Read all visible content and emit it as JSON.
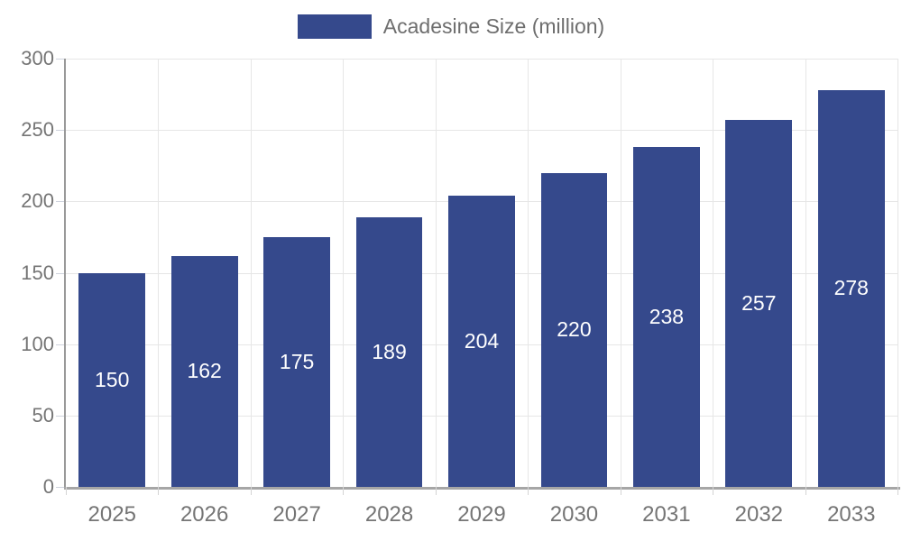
{
  "chart_data": {
    "type": "bar",
    "title": "",
    "series_name": "Acadesine Size (million)",
    "categories": [
      "2025",
      "2026",
      "2027",
      "2028",
      "2029",
      "2030",
      "2031",
      "2032",
      "2033"
    ],
    "values": [
      150,
      162,
      175,
      189,
      204,
      220,
      238,
      257,
      278
    ],
    "xlabel": "",
    "ylabel": "",
    "ylim": [
      0,
      300
    ],
    "yticks": [
      0,
      50,
      100,
      150,
      200,
      250,
      300
    ],
    "grid": true,
    "legend_position": "top",
    "value_labels": "inside-center"
  },
  "colors": {
    "bar": "#35498c",
    "bar_value_text": "#ffffff",
    "axis_text": "#757575",
    "legend_text": "#6e6e6e",
    "gridline": "#e6e6e6",
    "y_axis_line": "#999999",
    "x_axis_line": "#a6a6a6",
    "tick_mark": "#cfd3dd"
  }
}
